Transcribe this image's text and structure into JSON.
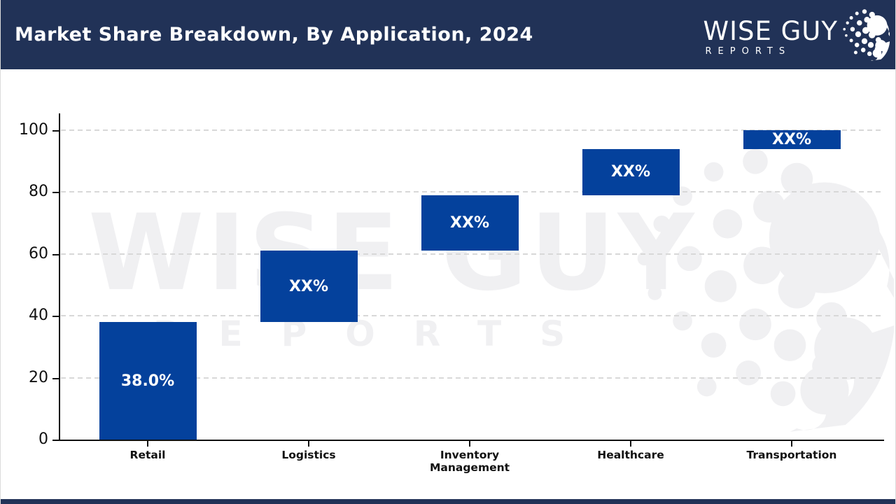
{
  "header": {
    "title": "Market Share Breakdown, By Application, 2024",
    "logo": {
      "brand": "WISE GUY",
      "sub": "REPORTS"
    }
  },
  "watermark": {
    "brand": "WISE GUY",
    "sub": "REPORTS"
  },
  "colors": {
    "header_bg": "#213257",
    "footer_bg": "#213257",
    "bar": "#04419c",
    "bar_label": "#ffffff",
    "grid": "#d8d8d8",
    "axis": "#111111",
    "watermark": "#f0f0f2"
  },
  "chart_data": {
    "type": "bar",
    "subtype": "waterfall",
    "title": "Market Share Breakdown, By Application, 2024",
    "categories": [
      "Retail",
      "Logistics",
      "Inventory\nManagement",
      "Healthcare",
      "Transportation"
    ],
    "segments": [
      {
        "category": "Retail",
        "start": 0,
        "end": 38,
        "value": 38,
        "label": "38.0%"
      },
      {
        "category": "Logistics",
        "start": 38,
        "end": 61,
        "value": 23,
        "label": "XX%"
      },
      {
        "category": "Inventory Management",
        "start": 61,
        "end": 79,
        "value": 18,
        "label": "XX%"
      },
      {
        "category": "Healthcare",
        "start": 79,
        "end": 94,
        "value": 15,
        "label": "XX%"
      },
      {
        "category": "Transportation",
        "start": 94,
        "end": 100,
        "value": 6,
        "label": "XX%"
      }
    ],
    "yticks": [
      0,
      20,
      40,
      60,
      80,
      100
    ],
    "ylim": [
      0,
      105
    ],
    "xlabel": "",
    "ylabel": "",
    "legend": "none",
    "grid": "horizontal-dashed"
  }
}
